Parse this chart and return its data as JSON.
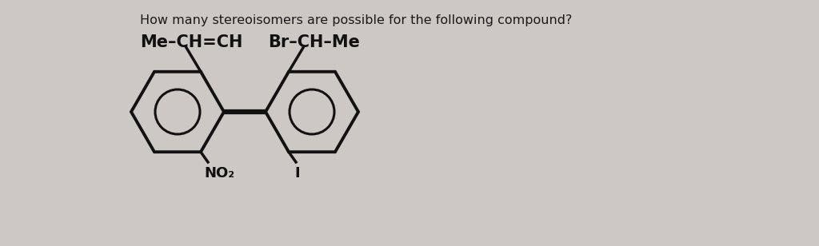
{
  "background_color": "#ccc8c4",
  "title_text": "How many stereoisomers are possible for the following compound?",
  "title_fontsize": 11.5,
  "title_color": "#1a1a1a",
  "subtitle1_text": "Me–CH=CH",
  "subtitle2_text": "Br–CH–Me",
  "subtitle_fontsize": 15,
  "subtitle_color": "#111111",
  "no2_label": "NO₂",
  "i_label": "I",
  "ring_color": "#111111",
  "lw_ring": 2.8,
  "lw_inner": 2.2,
  "lw_bridge": 4.5,
  "lw_sub": 2.5
}
